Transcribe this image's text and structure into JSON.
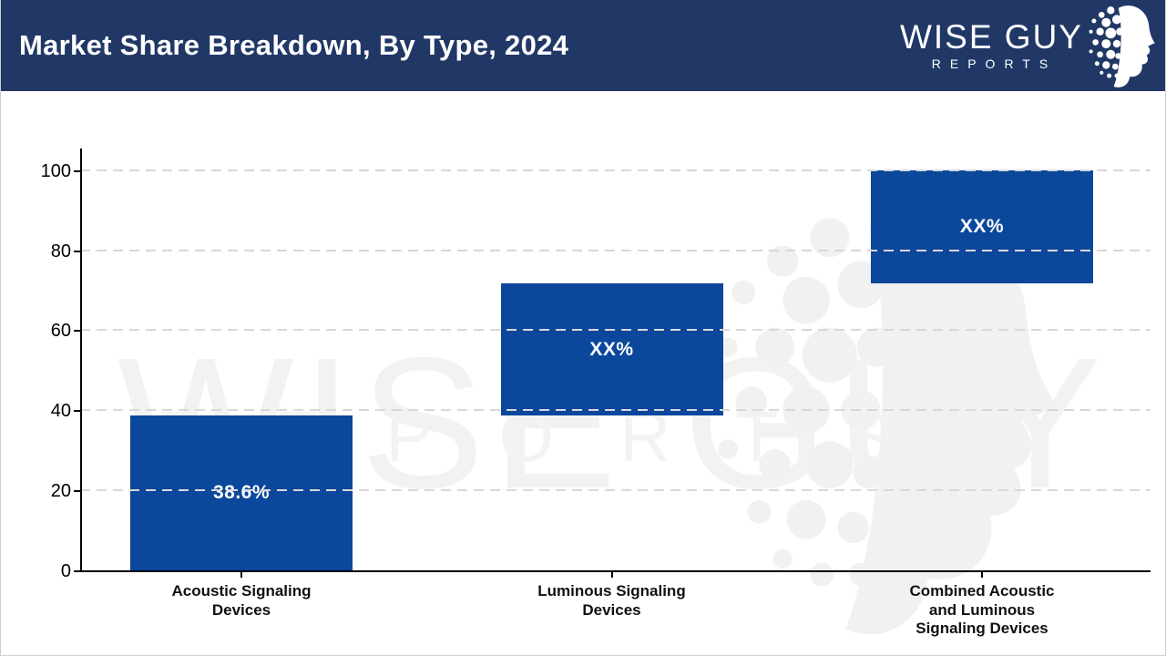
{
  "header": {
    "title": "Market Share Breakdown, By Type, 2024",
    "logo": {
      "name_line": "WISE GUY",
      "reports_line": "REPORTS"
    },
    "colors": {
      "background": "#213867",
      "text": "#ffffff"
    }
  },
  "watermark": {
    "name_line": "WISE GUY",
    "reports_line": "REPORTS"
  },
  "chart_data": {
    "type": "bar",
    "subtype": "floating-waterfall",
    "title": "Market Share Breakdown, By Type, 2024",
    "categories": [
      [
        "Acoustic Signaling",
        "Devices"
      ],
      [
        "Luminous Signaling",
        "Devices"
      ],
      [
        "Combined Acoustic",
        "and Luminous",
        "Signaling Devices"
      ]
    ],
    "bars": [
      {
        "from": 0,
        "to": 38.6,
        "label": "38.6%"
      },
      {
        "from": 38.6,
        "to": 71.7,
        "label": "XX%"
      },
      {
        "from": 71.7,
        "to": 100,
        "label": "XX%"
      }
    ],
    "yticks": [
      0,
      20,
      40,
      60,
      80,
      100
    ],
    "ylim": [
      0,
      105.4
    ],
    "grid": {
      "visible": true,
      "style": "dashed",
      "color": "#d8d8d8"
    },
    "bar_color": "#0b479b",
    "bar_label_color": "#ffffff",
    "axis_color": "#000000",
    "legend": "none",
    "xlabel": "",
    "ylabel": ""
  }
}
